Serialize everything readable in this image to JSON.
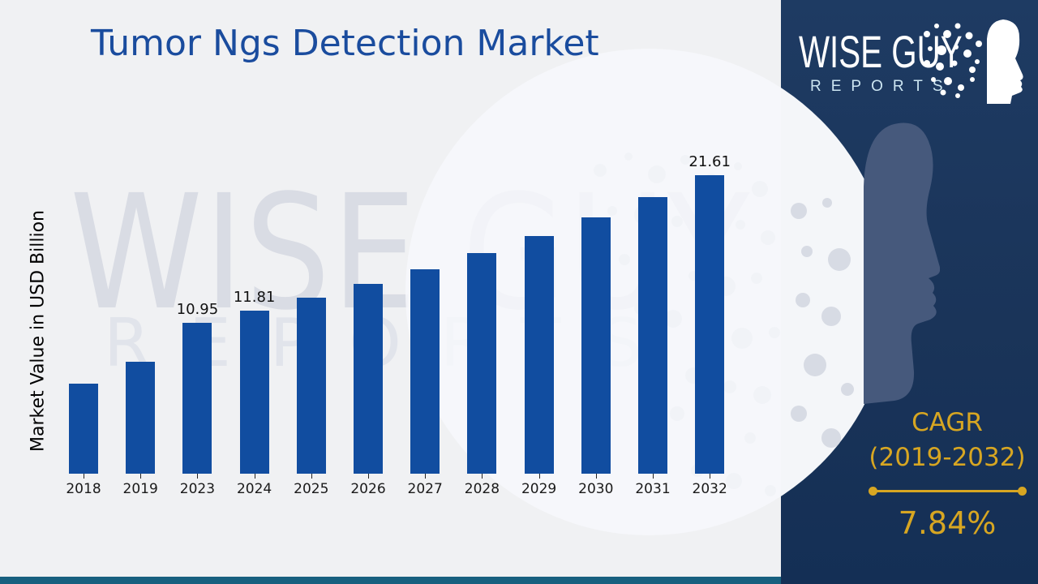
{
  "title": "Tumor Ngs Detection Market",
  "y_axis_label": "Market Value in USD Billion",
  "watermark": {
    "line1": "WISE GUY",
    "line2": "REPORTS"
  },
  "logo": {
    "line1": "WISE GUY",
    "line2": "REPORTS"
  },
  "cagr": {
    "label": "CAGR",
    "range": "(2019-2032)",
    "value": "7.84%"
  },
  "colors": {
    "bar": "#114da0",
    "title": "#1a4c9e",
    "panel_navy": "#1a3459",
    "gold": "#d7a622",
    "footer_teal": "#17607f",
    "background": "#f0f1f3"
  },
  "chart_data": {
    "type": "bar",
    "title": "Tumor Ngs Detection Market",
    "xlabel": "",
    "ylabel": "Market Value in USD Billion",
    "categories": [
      "2018",
      "2019",
      "2023",
      "2024",
      "2025",
      "2026",
      "2027",
      "2028",
      "2029",
      "2030",
      "2031",
      "2032"
    ],
    "values": [
      6.5,
      8.1,
      10.95,
      11.81,
      12.74,
      13.73,
      14.81,
      15.97,
      17.22,
      18.57,
      20.03,
      21.61
    ],
    "bar_labels": {
      "2023": "10.95",
      "2024": "11.81",
      "2032": "21.61"
    },
    "ylim": [
      0,
      23
    ],
    "grid": false,
    "legend": false,
    "annotation": "CAGR (2019-2032) 7.84%"
  }
}
